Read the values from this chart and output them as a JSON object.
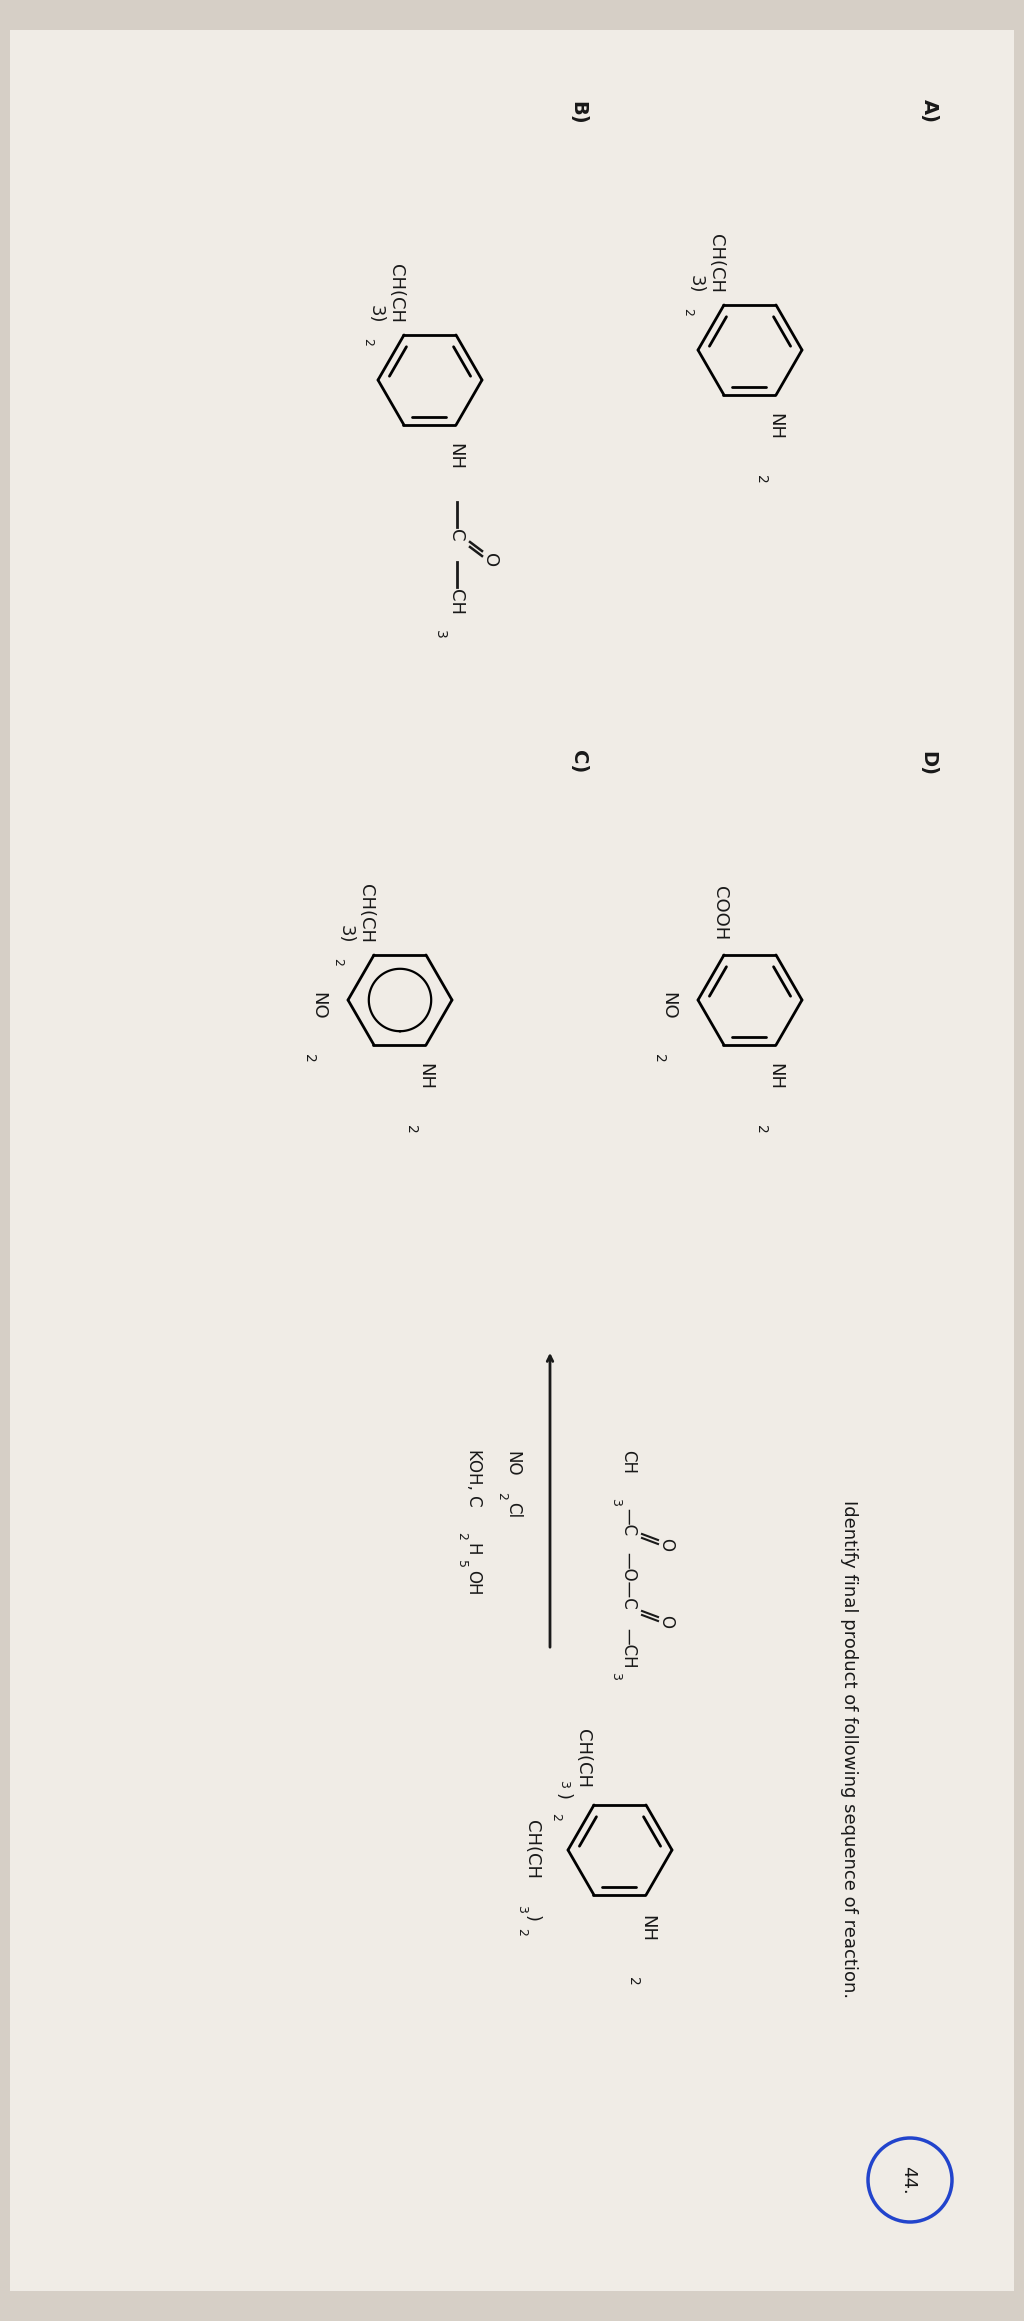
{
  "bg_color": "#d6cfc6",
  "text_color": "#1a1a1a",
  "fig_width": 10.24,
  "fig_height": 23.21,
  "question_num": "44.",
  "question_text": "Identify final product of following sequence of reaction.",
  "circle_color": "#2244cc"
}
